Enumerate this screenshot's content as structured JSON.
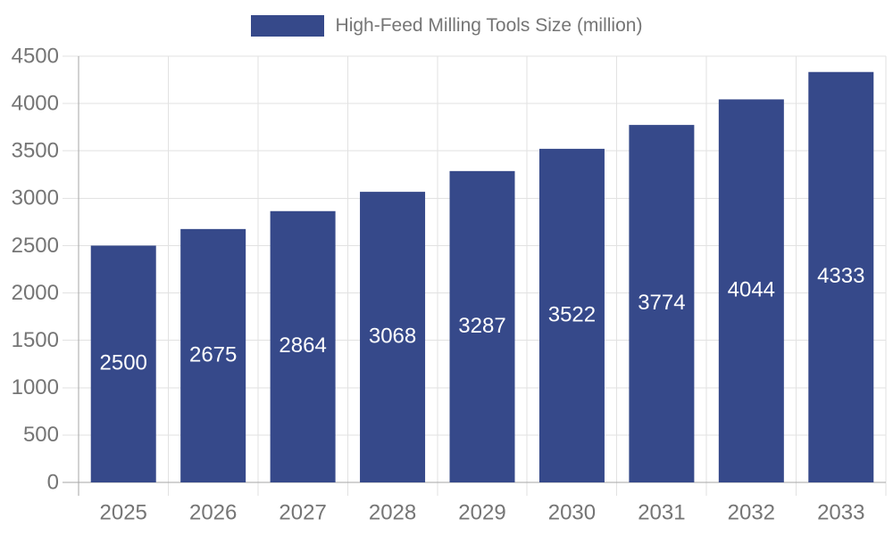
{
  "legend": {
    "label": "High-Feed Milling Tools Size (million)"
  },
  "chart_data": {
    "type": "bar",
    "title": "High-Feed Milling Tools Size (million)",
    "categories": [
      "2025",
      "2026",
      "2027",
      "2028",
      "2029",
      "2030",
      "2031",
      "2032",
      "2033"
    ],
    "values": [
      2500,
      2675,
      2864,
      3068,
      3287,
      3522,
      3774,
      4044,
      4333
    ],
    "xlabel": "",
    "ylabel": "",
    "ylim": [
      0,
      4500
    ],
    "ytick_step": 500,
    "grid": true,
    "legend_position": "top-center",
    "bar_labels_inside": true,
    "colors": {
      "bar": "#36498A",
      "bar_label": "#FFFFFF",
      "axis_label": "#757575",
      "grid_line": "#E2E2E2",
      "axis_line": "#A6A6A6",
      "background": "#FFFFFF"
    }
  }
}
